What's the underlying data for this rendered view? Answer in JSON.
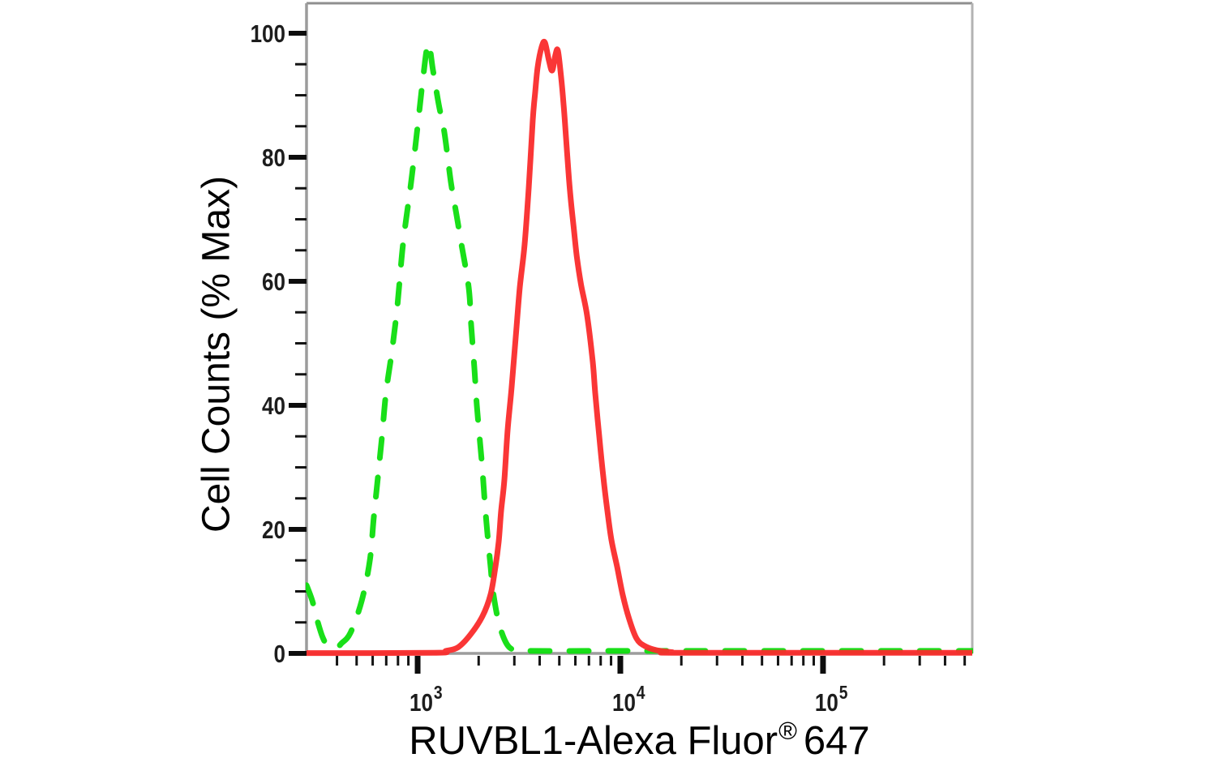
{
  "chart_data": {
    "type": "line",
    "title": "",
    "xlabel": "RUVBL1-Alexa Fluor® 647",
    "xlabel_parts": {
      "pre": "RUVBL1-Alexa Fluor",
      "sup": "®",
      "post": "647"
    },
    "ylabel": "Cell Counts (% Max)",
    "x_scale": "log",
    "grid": false,
    "legend": "none",
    "xlim": [
      283,
      545000
    ],
    "ylim": [
      0,
      100
    ],
    "y_ticks_major": [
      0,
      20,
      40,
      60,
      80,
      100
    ],
    "y_tick_labels": [
      "0",
      "20",
      "40",
      "60",
      "80",
      "100"
    ],
    "y_ticks_minor": [
      5,
      10,
      15,
      25,
      30,
      35,
      45,
      50,
      55,
      65,
      70,
      75,
      85,
      90,
      95
    ],
    "x_ticks_major": [
      {
        "value": 1000,
        "base": "10",
        "exp": "3"
      },
      {
        "value": 10000,
        "base": "10",
        "exp": "4"
      },
      {
        "value": 100000,
        "base": "10",
        "exp": "5"
      }
    ],
    "x_ticks_minor": [
      400,
      500,
      600,
      700,
      800,
      900,
      2000,
      3000,
      4000,
      5000,
      6000,
      7000,
      8000,
      9000,
      20000,
      30000,
      40000,
      50000,
      60000,
      70000,
      80000,
      90000,
      200000,
      300000,
      400000,
      500000
    ],
    "colors": {
      "frame": "#9c9c9c",
      "tick": "#141414",
      "tick_label": "#1d1d1d",
      "green_curve": "#0ddd0d",
      "red_curve": "#fa2b2b"
    },
    "series": [
      {
        "name": "green-dashed",
        "style": "dashed",
        "color": "#0ddd0d",
        "points": [
          [
            283,
            11
          ],
          [
            302,
            8.5
          ],
          [
            322,
            5
          ],
          [
            340,
            2.6
          ],
          [
            360,
            1.3
          ],
          [
            398,
            0.9
          ],
          [
            420,
            1.6
          ],
          [
            466,
            3.3
          ],
          [
            530,
            8.5
          ],
          [
            581,
            15
          ],
          [
            608,
            22
          ],
          [
            637,
            28.5
          ],
          [
            667,
            35
          ],
          [
            698,
            42
          ],
          [
            745,
            48.5
          ],
          [
            794,
            56
          ],
          [
            847,
            66
          ],
          [
            929,
            76
          ],
          [
            1000,
            85
          ],
          [
            1057,
            92
          ],
          [
            1127,
            98.3
          ],
          [
            1191,
            94
          ],
          [
            1271,
            88.5
          ],
          [
            1355,
            84
          ],
          [
            1459,
            76
          ],
          [
            1550,
            71
          ],
          [
            1644,
            66
          ],
          [
            1786,
            59
          ],
          [
            1837,
            53
          ],
          [
            1905,
            46
          ],
          [
            1959,
            40
          ],
          [
            2033,
            34
          ],
          [
            2089,
            29.5
          ],
          [
            2148,
            24
          ],
          [
            2228,
            18
          ],
          [
            2291,
            14
          ],
          [
            2355,
            10
          ],
          [
            2512,
            5
          ],
          [
            2754,
            1.5
          ],
          [
            3048,
            0.5
          ],
          [
            3600,
            0.4
          ],
          [
            10000,
            0.4
          ],
          [
            100000,
            0.4
          ],
          [
            545000,
            0.4
          ]
        ]
      },
      {
        "name": "red-solid",
        "style": "solid",
        "color": "#fa2b2b",
        "points": [
          [
            283,
            0.05
          ],
          [
            1200,
            0.1
          ],
          [
            1380,
            0.4
          ],
          [
            1585,
            1
          ],
          [
            1820,
            3
          ],
          [
            2089,
            6
          ],
          [
            2291,
            9.5
          ],
          [
            2421,
            14
          ],
          [
            2512,
            18
          ],
          [
            2582,
            23
          ],
          [
            2679,
            28
          ],
          [
            2780,
            36
          ],
          [
            2911,
            43
          ],
          [
            3048,
            51
          ],
          [
            3192,
            59
          ],
          [
            3373,
            66
          ],
          [
            3532,
            75
          ],
          [
            3698,
            86
          ],
          [
            3802,
            90.5
          ],
          [
            3908,
            94.5
          ],
          [
            4093,
            97.8
          ],
          [
            4246,
            98.5
          ],
          [
            4450,
            95.5
          ],
          [
            4613,
            94
          ],
          [
            4780,
            96.5
          ],
          [
            4920,
            97.2
          ],
          [
            5100,
            93
          ],
          [
            5250,
            88.5
          ],
          [
            5400,
            83
          ],
          [
            5550,
            77.5
          ],
          [
            5700,
            73
          ],
          [
            5900,
            68.4
          ],
          [
            6100,
            64
          ],
          [
            6400,
            59.5
          ],
          [
            6855,
            54.5
          ],
          [
            7311,
            47
          ],
          [
            7516,
            42
          ],
          [
            7870,
            35
          ],
          [
            8241,
            28.5
          ],
          [
            8630,
            23
          ],
          [
            9036,
            18.3
          ],
          [
            9638,
            14
          ],
          [
            10280,
            9.4
          ],
          [
            11066,
            5.5
          ],
          [
            12023,
            2.4
          ],
          [
            13183,
            1.2
          ],
          [
            15136,
            0.5
          ],
          [
            18000,
            0.2
          ],
          [
            21000,
            0.1
          ],
          [
            545000,
            0.1
          ]
        ]
      }
    ]
  }
}
